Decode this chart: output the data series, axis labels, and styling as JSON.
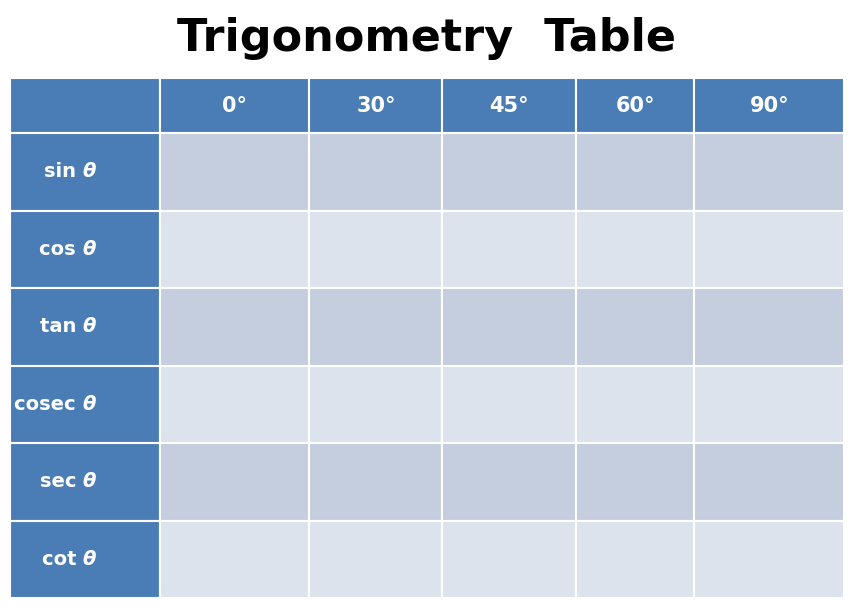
{
  "title": "Trigonometry  Table",
  "title_fontsize": 32,
  "title_fontweight": "bold",
  "col_headers": [
    "",
    "0°",
    "30°",
    "45°",
    "60°",
    "90°"
  ],
  "row_headers": [
    "sin θ",
    "cos θ",
    "tan θ",
    "cosec θ",
    "sec θ",
    "cot θ"
  ],
  "header_bg": "#4a7db5",
  "row_label_bg": "#4a7db5",
  "row_colors": [
    "#c5cedf",
    "#dde3ed",
    "#c5cedf",
    "#dde3ed",
    "#c5cedf",
    "#dde3ed"
  ],
  "header_text_color": "#ffffff",
  "row_label_text_color": "#ffffff",
  "border_color": "#ffffff",
  "background_color": "#ffffff",
  "header_fontsize": 15,
  "row_label_fontsize": 14
}
